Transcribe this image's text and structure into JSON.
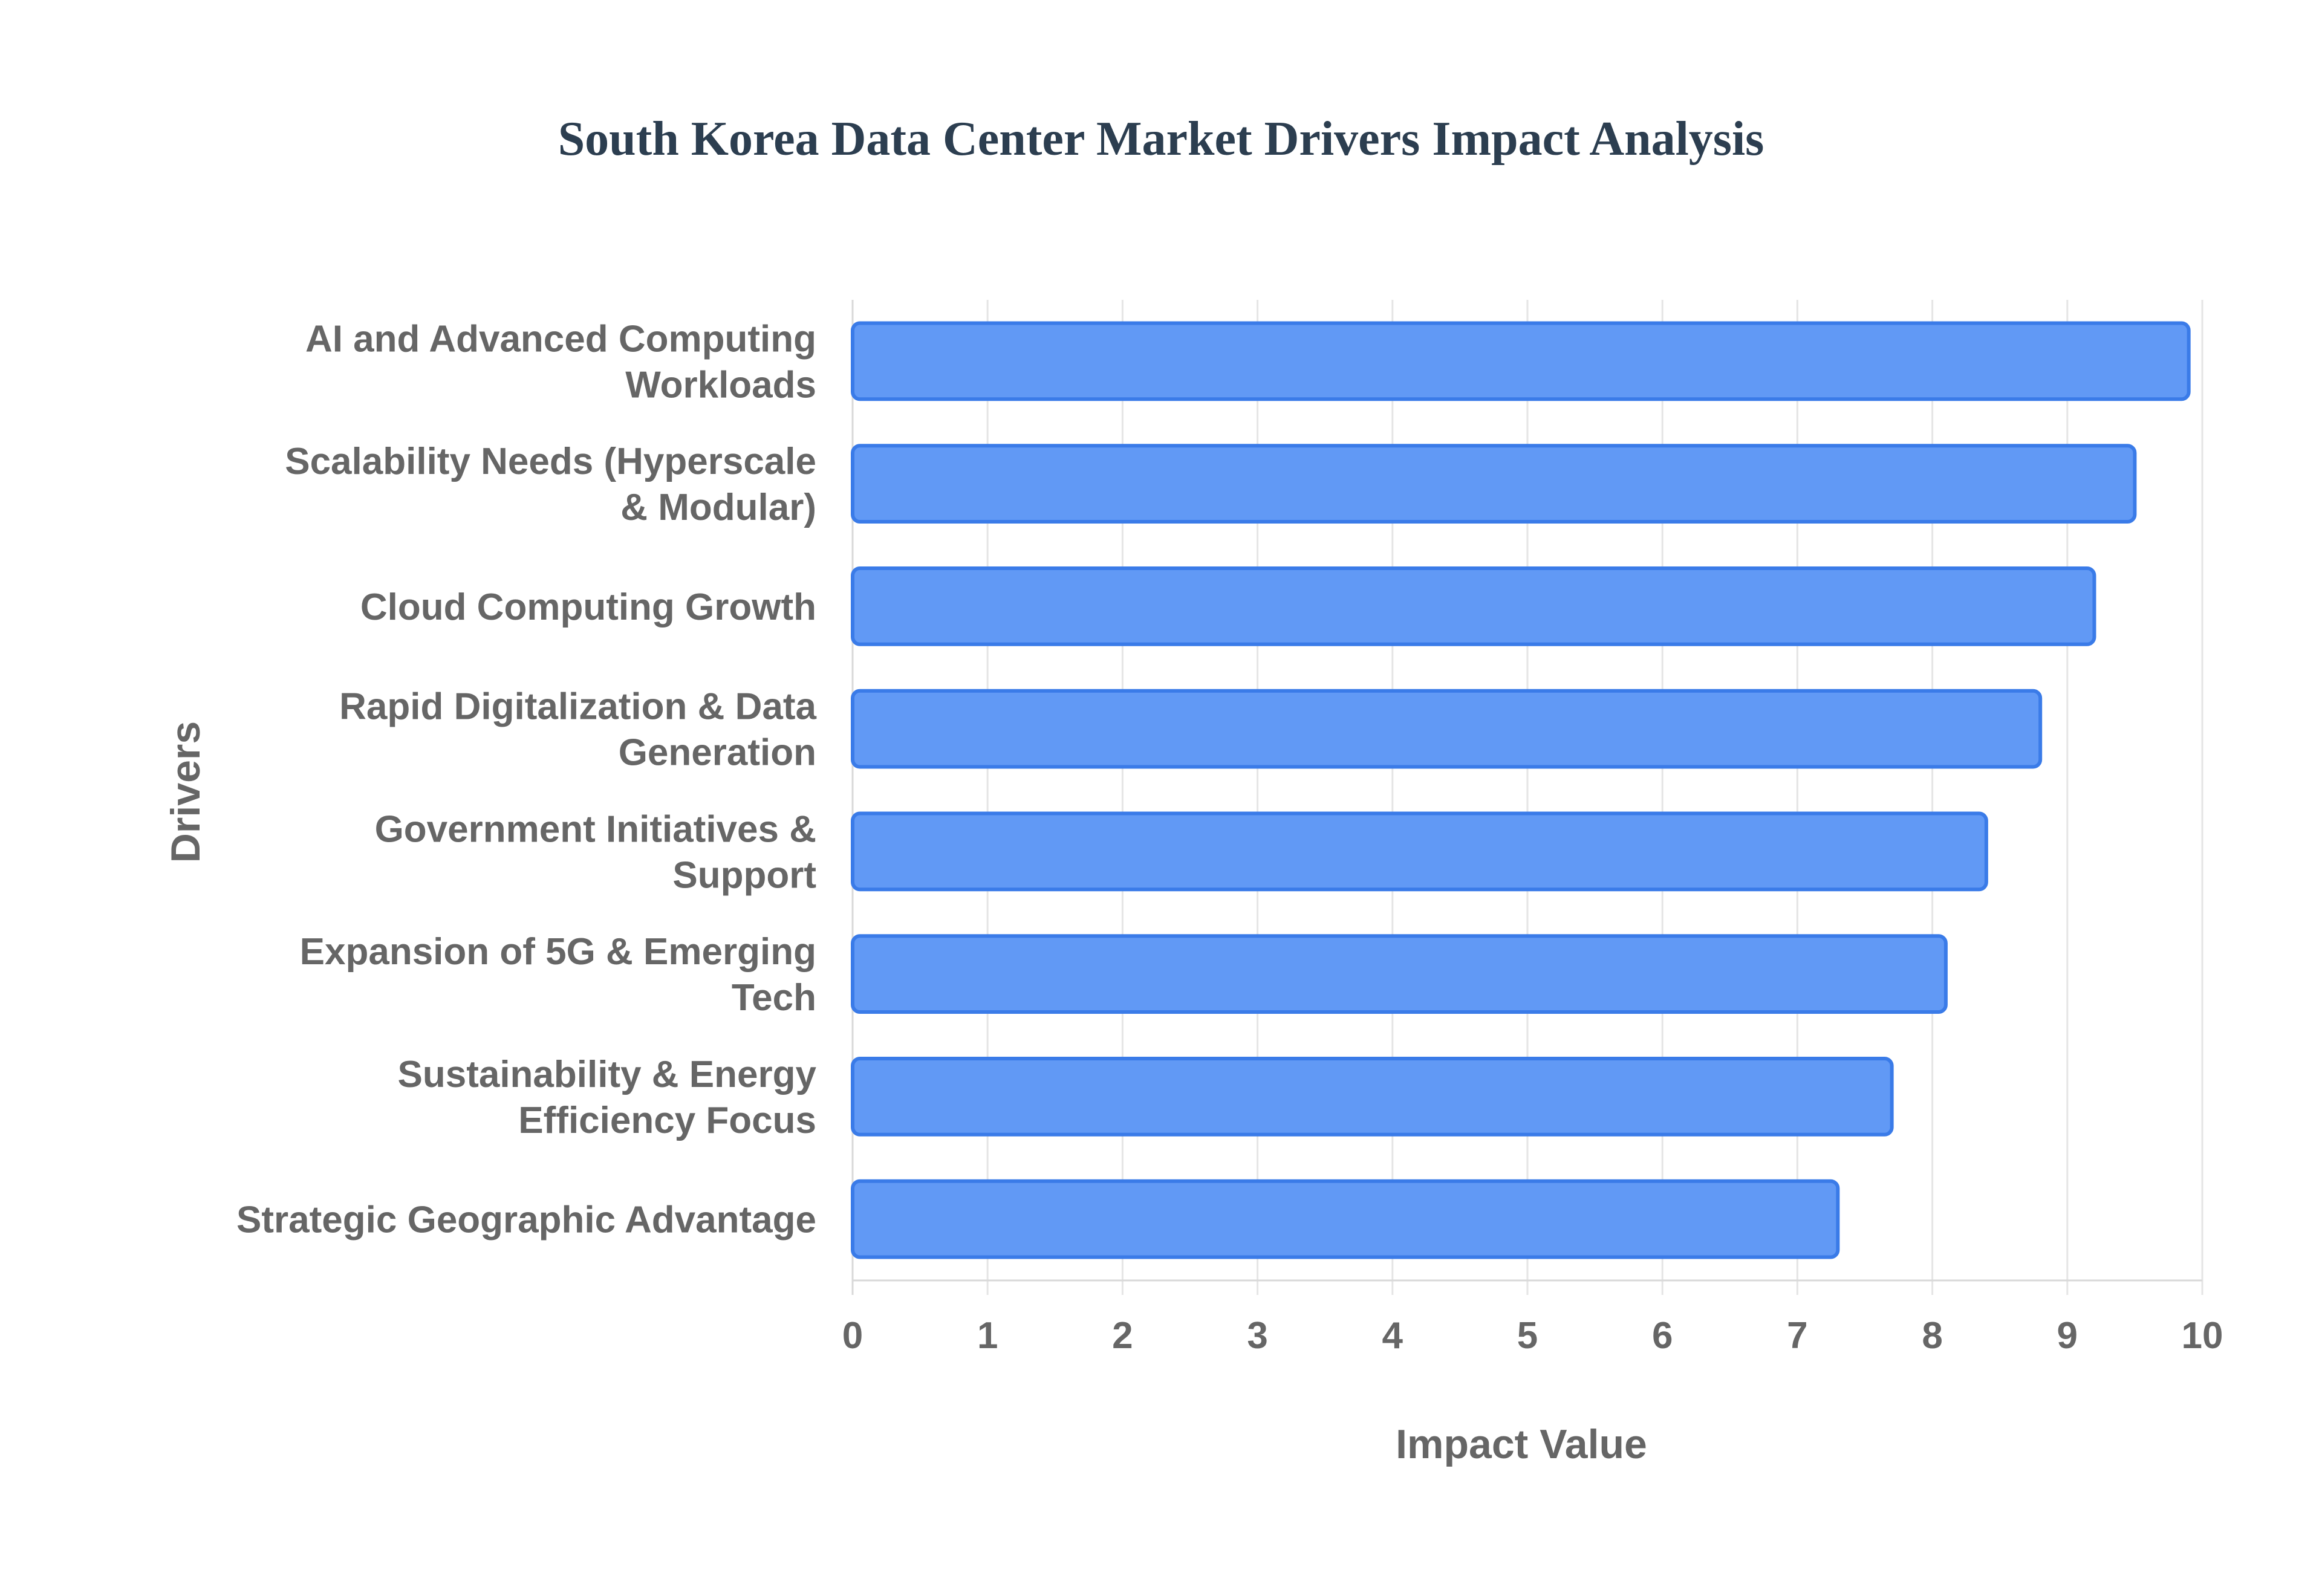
{
  "chart_data": {
    "type": "bar",
    "orientation": "horizontal",
    "title": "South Korea Data Center Market Drivers Impact Analysis",
    "xlabel": "Impact Value",
    "ylabel": "Drivers",
    "xlim": [
      0,
      10
    ],
    "xticks": [
      "0",
      "1",
      "2",
      "3",
      "4",
      "5",
      "6",
      "7",
      "8",
      "9",
      "10"
    ],
    "grid": true,
    "categories": [
      [
        "AI and Advanced Computing",
        "Workloads"
      ],
      [
        "Scalability Needs (Hyperscale",
        "& Modular)"
      ],
      [
        "Cloud Computing Growth"
      ],
      [
        "Rapid Digitalization & Data",
        "Generation"
      ],
      [
        "Government Initiatives &",
        "Support"
      ],
      [
        "Expansion of 5G & Emerging",
        "Tech"
      ],
      [
        "Sustainability & Energy",
        "Efficiency Focus"
      ],
      [
        "Strategic Geographic Advantage"
      ]
    ],
    "values": [
      9.9,
      9.5,
      9.2,
      8.8,
      8.4,
      8.1,
      7.7,
      7.3
    ],
    "colors": {
      "bar_fill": "#6199f5",
      "bar_stroke": "#3a7be8",
      "title": "#2c3e50",
      "text": "#666666",
      "grid": "#e5e5e5"
    }
  }
}
